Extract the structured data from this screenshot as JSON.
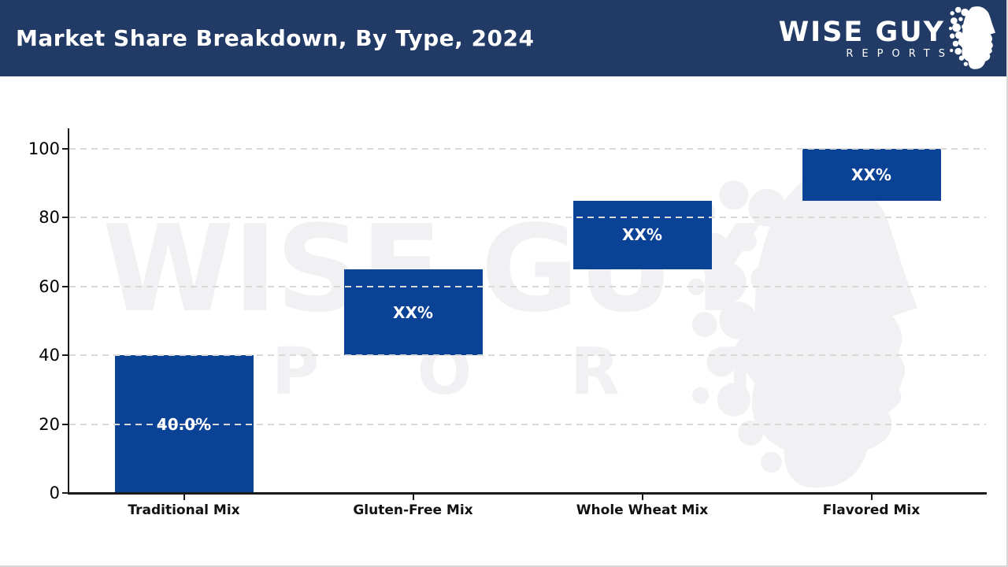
{
  "header": {
    "title": "Market Share Breakdown, By Type, 2024",
    "bg_color": "#213a66",
    "logo": {
      "line1": "WISE GUY",
      "line2": "REPORTS"
    }
  },
  "watermark": {
    "line1": "WISE GUY",
    "line2": "P O R T S"
  },
  "chart_data": {
    "type": "bar",
    "variant": "waterfall",
    "title": "Market Share Breakdown, By Type, 2024",
    "categories": [
      "Traditional Mix",
      "Gluten-Free Mix",
      "Whole Wheat Mix",
      "Flavored Mix"
    ],
    "values": [
      40,
      25,
      20,
      15
    ],
    "cumulative_start": [
      0,
      40,
      65,
      85
    ],
    "cumulative_end": [
      40,
      65,
      85,
      100
    ],
    "bar_labels": [
      "40.0%",
      "XX%",
      "XX%",
      "XX%"
    ],
    "unit": "%",
    "ylim": [
      0,
      105
    ],
    "yticks": [
      0,
      20,
      40,
      60,
      80,
      100
    ],
    "grid": {
      "horizontal": true,
      "style": "dashed",
      "color": "#d9d9d9"
    },
    "bar_color": "#0a4296",
    "bar_label_color": "#ffffff",
    "axis_color": "#1a1a1a",
    "legend": "none"
  }
}
